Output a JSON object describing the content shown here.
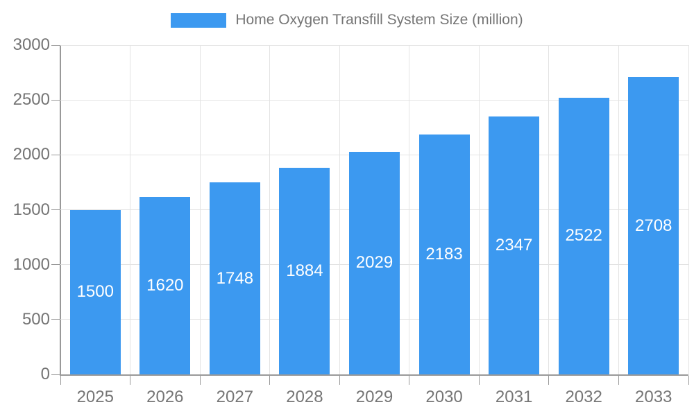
{
  "chart_data": {
    "type": "bar",
    "title": "Home Oxygen Transfill System Size (million)",
    "categories": [
      "2025",
      "2026",
      "2027",
      "2028",
      "2029",
      "2030",
      "2031",
      "2032",
      "2033"
    ],
    "values": [
      1500,
      1620,
      1748,
      1884,
      2029,
      2183,
      2347,
      2522,
      2708
    ],
    "xlabel": "",
    "ylabel": "",
    "ylim": [
      0,
      3000
    ],
    "ytick_step": 500,
    "grid": true,
    "legend_position": "top",
    "bar_label_position": "inside-center"
  },
  "colors": {
    "bar": "#3c99f0",
    "grid": "#e3e3e3",
    "axis": "#999999",
    "text": "#757575",
    "bar_label": "#ffffff"
  }
}
